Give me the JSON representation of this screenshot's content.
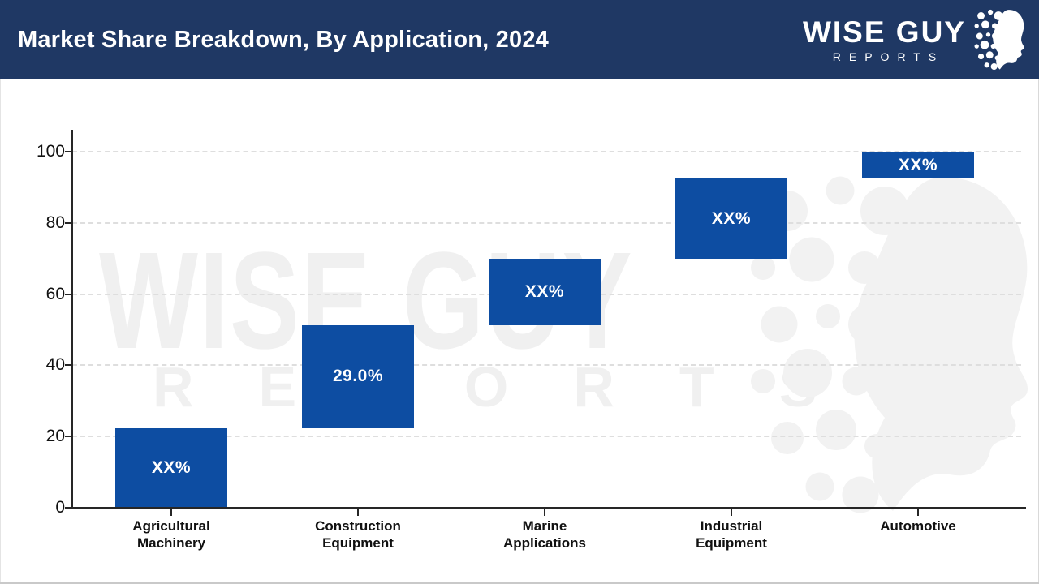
{
  "header": {
    "title": "Market Share Breakdown, By Application, 2024",
    "logo": {
      "line1": "WISE GUY",
      "line2": "REPORTS",
      "face_icon": "dotted-face-profile"
    }
  },
  "watermark": {
    "line1": "WISE GUY",
    "line2": "REPORTS",
    "face_icon": "dotted-face-profile"
  },
  "colors": {
    "header_bg": "#1f3864",
    "bar": "#0d4da2",
    "bar_label": "#ffffff",
    "axis": "#262626",
    "grid": "#dedede",
    "tick_label": "#111111",
    "watermark": "#f0f0f0"
  },
  "chart_data": {
    "type": "bar",
    "subtype": "waterfall",
    "title": "Market Share Breakdown, By Application, 2024",
    "xlabel": "",
    "ylabel": "",
    "ylim": [
      0,
      100
    ],
    "yticks": [
      0,
      20,
      40,
      60,
      80,
      100
    ],
    "grid": "horizontal-dashed",
    "legend": null,
    "categories": [
      "Agricultural Machinery",
      "Construction Equipment",
      "Marine Applications",
      "Industrial Equipment",
      "Automotive"
    ],
    "category_label_lines": [
      [
        "Agricultural",
        "Machinery"
      ],
      [
        "Construction",
        "Equipment"
      ],
      [
        "Marine",
        "Applications"
      ],
      [
        "Industrial",
        "Equipment"
      ],
      [
        "Automotive"
      ]
    ],
    "segments": [
      {
        "category": "Agricultural Machinery",
        "start": 0,
        "end": 22.3,
        "value_label": "XX%"
      },
      {
        "category": "Construction Equipment",
        "start": 22.3,
        "end": 51.3,
        "value_label": "29.0%"
      },
      {
        "category": "Marine Applications",
        "start": 51.3,
        "end": 70.0,
        "value_label": "XX%"
      },
      {
        "category": "Industrial Equipment",
        "start": 70.0,
        "end": 92.4,
        "value_label": "XX%"
      },
      {
        "category": "Automotive",
        "start": 92.4,
        "end": 100.0,
        "value_label": "XX%"
      }
    ]
  }
}
